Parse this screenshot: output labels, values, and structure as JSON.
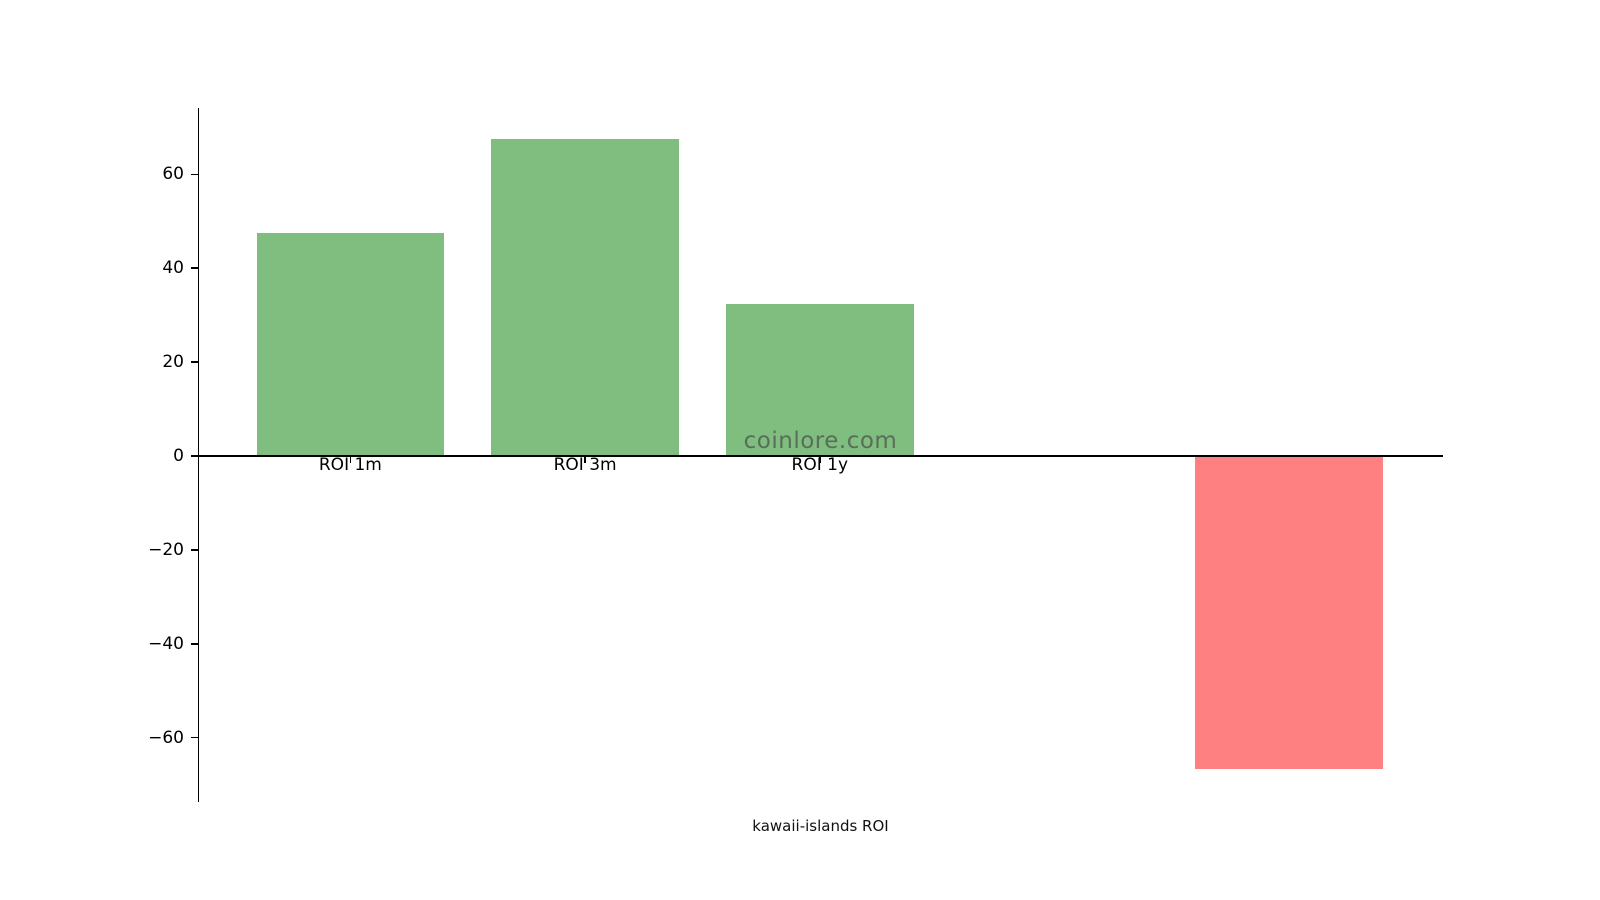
{
  "watermark": "coinlore.com",
  "caption": "kawaii-islands ROI",
  "colors": {
    "positive_bar": "#7fbe7f",
    "negative_bar": "#ff8080",
    "axis": "#000000",
    "watermark": "#444444"
  },
  "chart_data": {
    "type": "bar",
    "title": "kawaii-islands ROI",
    "categories": [
      "ROI 1m",
      "ROI 3m",
      "ROI 1y",
      "",
      ""
    ],
    "values": [
      47.4,
      67.5,
      32.3,
      0,
      -66.7
    ],
    "bar_colors": [
      "#7fbe7f",
      "#7fbe7f",
      "#7fbe7f",
      null,
      "#ff8080"
    ],
    "xlabel": "",
    "ylabel": "",
    "yticks": [
      60,
      40,
      20,
      0,
      -20,
      -40,
      -60
    ],
    "ylim": [
      -73.8,
      74.2
    ],
    "grid": false,
    "legend": null,
    "annotations": [
      "coinlore.com"
    ]
  }
}
